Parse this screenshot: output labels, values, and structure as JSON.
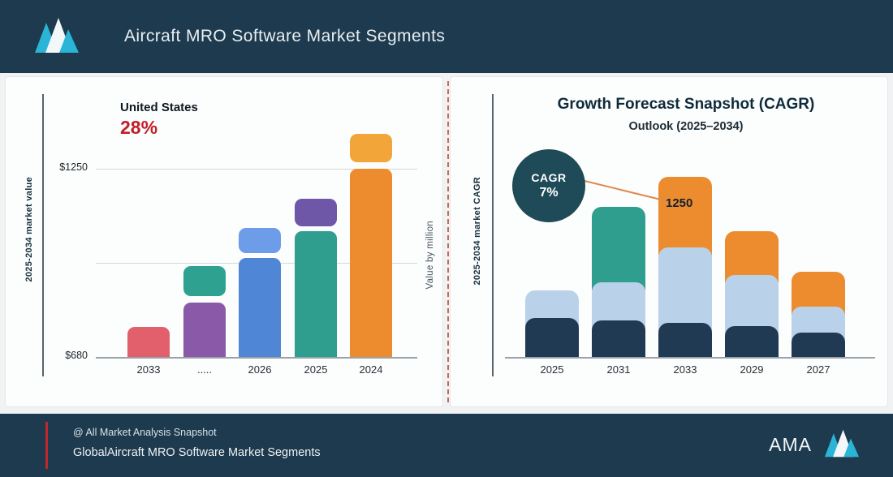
{
  "header": {
    "title": "Aircraft MRO Software Market Segments"
  },
  "footer": {
    "tagline": "@ All Market Analysis Snapshot",
    "title": "GlobalAircraft MRO Software Market Segments",
    "brand": "AMA"
  },
  "colors": {
    "navy": "#1d3a4e",
    "cyan": "#2ab4d6",
    "red": "#c11f28",
    "divider": "#c96a50",
    "orange": "#ec8c2f",
    "teal": "#2f9e8e",
    "light_blue": "#b9d2ea"
  },
  "chart_data": [
    {
      "type": "bar",
      "title": "United States",
      "annotation": "28%",
      "ylabel_left": "2025-2034 market value",
      "ylabel_right": "Value by million",
      "ylim": [
        680,
        1450
      ],
      "yticks": [
        {
          "value": 1250,
          "label": "$1250"
        },
        {
          "value": 965,
          "label": ""
        }
      ],
      "baseline": {
        "value": 680,
        "label": "$680"
      },
      "categories": [
        "2033",
        ".....",
        "2026",
        "2025",
        "2024"
      ],
      "bars": [
        {
          "label": "2033",
          "color": "#e2606c",
          "value": 770
        },
        {
          "label": ".....",
          "color": "#8a5aa8",
          "value": 845,
          "cap": {
            "color": "#2fa191",
            "from": 865,
            "to": 955
          }
        },
        {
          "label": "2026",
          "color": "#4f86d6",
          "value": 980,
          "cap": {
            "color": "#6d9ce8",
            "from": 995,
            "to": 1070
          }
        },
        {
          "label": "2025",
          "color": "#2f9e8e",
          "value": 1060,
          "cap": {
            "color": "#6f57a8",
            "from": 1075,
            "to": 1160
          }
        },
        {
          "label": "2024",
          "color": "#ec8c2f",
          "value": 1250,
          "cap": {
            "color": "#f2a539",
            "from": 1270,
            "to": 1355
          }
        }
      ]
    },
    {
      "type": "stacked-bar",
      "title": "Growth Forecast Snapshot (CAGR)",
      "subtitle": "Outlook (2025–2034)",
      "ylabel_left": "2025-2034 market CAGR",
      "badge": {
        "label": "CAGR",
        "value": "7%"
      },
      "callout": {
        "bar": "2033",
        "label": "1250"
      },
      "ylim": [
        0,
        1400
      ],
      "categories": [
        "2025",
        "2031",
        "2033",
        "2029",
        "2027"
      ],
      "bars": [
        {
          "label": "2025",
          "segments": [
            {
              "name": "base",
              "color": "#203a54",
              "value": 215
            },
            {
              "name": "mid",
              "color": "#b9d2ea",
              "value": 245
            }
          ]
        },
        {
          "label": "2031",
          "segments": [
            {
              "name": "base",
              "color": "#203a54",
              "value": 195
            },
            {
              "name": "mid",
              "color": "#b9d2ea",
              "value": 265
            },
            {
              "name": "top",
              "color": "#2f9e8e",
              "value": 580
            }
          ]
        },
        {
          "label": "2033",
          "segments": [
            {
              "name": "base",
              "color": "#203a54",
              "value": 180
            },
            {
              "name": "mid",
              "color": "#b9d2ea",
              "value": 525
            },
            {
              "name": "top",
              "color": "#ec8c2f",
              "value": 545
            }
          ]
        },
        {
          "label": "2029",
          "segments": [
            {
              "name": "base",
              "color": "#203a54",
              "value": 155
            },
            {
              "name": "mid",
              "color": "#b9d2ea",
              "value": 360
            },
            {
              "name": "top",
              "color": "#ec8c2f",
              "value": 355
            }
          ]
        },
        {
          "label": "2027",
          "segments": [
            {
              "name": "base",
              "color": "#203a54",
              "value": 110
            },
            {
              "name": "mid",
              "color": "#b9d2ea",
              "value": 185
            },
            {
              "name": "top",
              "color": "#ec8c2f",
              "value": 295
            }
          ]
        }
      ]
    }
  ]
}
